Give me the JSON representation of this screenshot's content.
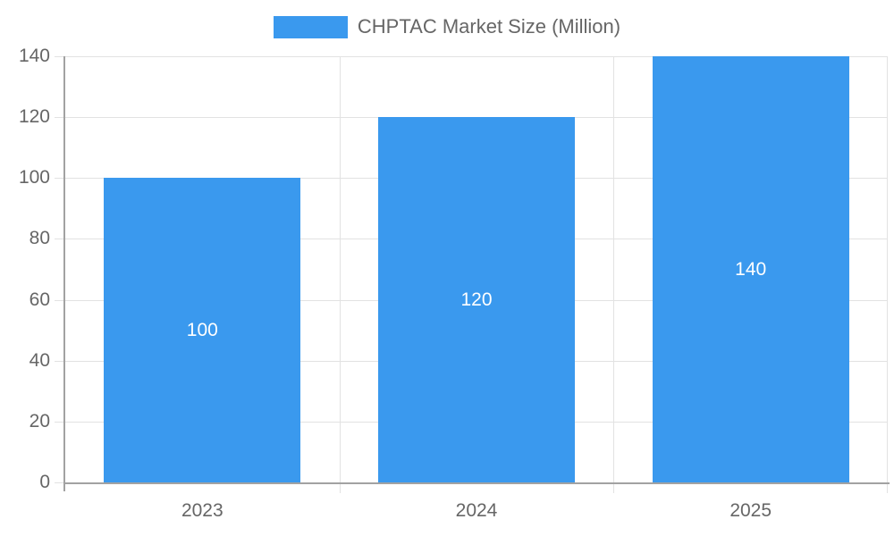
{
  "chart_data": {
    "type": "bar",
    "title": "CHPTAC Market Size (Million)",
    "categories": [
      "2023",
      "2024",
      "2025"
    ],
    "values": [
      100,
      120,
      140
    ],
    "xlabel": "",
    "ylabel": "",
    "ylim": [
      0,
      140
    ],
    "ytick_step": 20,
    "ytick_labels": [
      "0",
      "20",
      "40",
      "60",
      "80",
      "100",
      "120",
      "140"
    ],
    "grid": true,
    "legend_position": "top",
    "bar_value_labels": [
      "100",
      "120",
      "140"
    ],
    "colors": {
      "bar": "#3a99ee",
      "bar_value_text": "#ffffff",
      "axis_text": "#666666",
      "grid_line": "#e2e2e2",
      "axis_line": "#a2a2a2",
      "background": "#ffffff"
    }
  }
}
